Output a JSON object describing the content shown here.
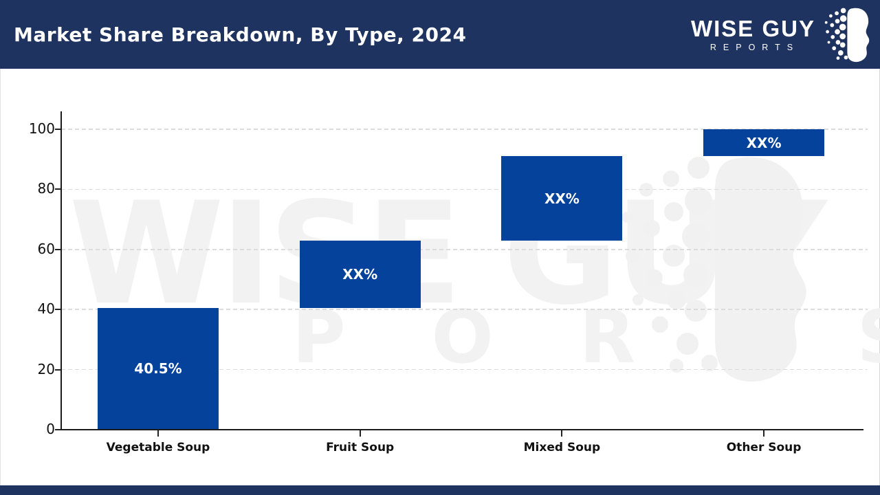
{
  "header": {
    "title": "Market Share Breakdown, By Type, 2024",
    "logo": {
      "line1": "WISE GUY",
      "line2": "REPORTS"
    }
  },
  "watermark": {
    "line1": "WISE GUY",
    "line2": "P O R T S"
  },
  "chart_data": {
    "type": "bar",
    "subtype": "waterfall",
    "title": "Market Share Breakdown, By Type, 2024",
    "categories": [
      "Vegetable Soup",
      "Fruit Soup",
      "Mixed Soup",
      "Other Soup"
    ],
    "segments": [
      {
        "category": "Vegetable Soup",
        "start": 0,
        "end": 40.5,
        "value": 40.5,
        "label": "40.5%"
      },
      {
        "category": "Fruit Soup",
        "start": 40.5,
        "end": 63,
        "value": 22.5,
        "label": "XX%"
      },
      {
        "category": "Mixed Soup",
        "start": 63,
        "end": 91,
        "value": 28,
        "label": "XX%"
      },
      {
        "category": "Other Soup",
        "start": 91,
        "end": 100,
        "value": 9,
        "label": "XX%"
      }
    ],
    "xlabel": "",
    "ylabel": "",
    "ylim": [
      0,
      100
    ],
    "yticks": [
      0,
      20,
      40,
      60,
      80,
      100
    ],
    "grid": "dashed-horizontal",
    "legend": "none"
  },
  "colors": {
    "header_bg": "#1F3361",
    "footer_bg": "#1F3361",
    "bar": "#05429B",
    "grid": "#DCDCDC",
    "axis": "#1A1A1A",
    "watermark": "#F2F2F2",
    "bar_label_text": "#FFFFFF",
    "title_text": "#FFFFFF"
  },
  "icons": {
    "logo_face": "wise-guy-face-profile-dots"
  }
}
